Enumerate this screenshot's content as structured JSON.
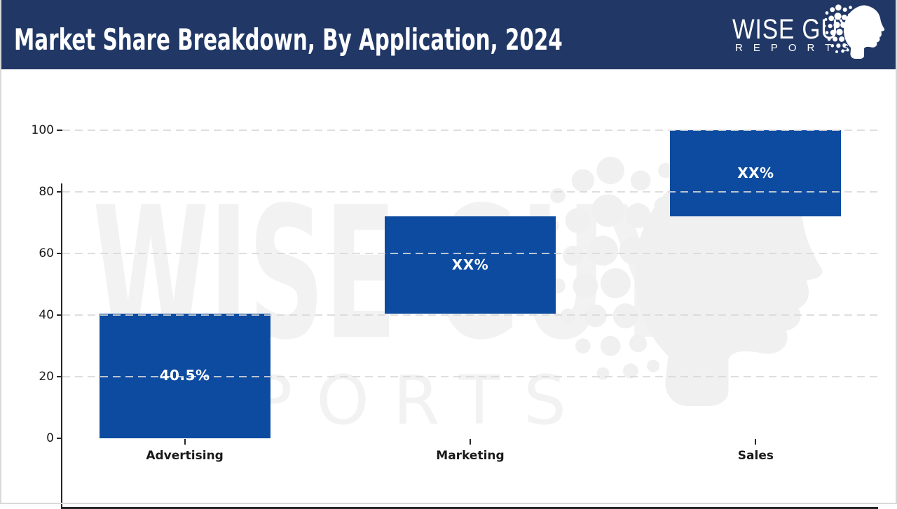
{
  "header": {
    "title": "Market Share Breakdown, By Application, 2024",
    "logo": {
      "line1": "WISE GUY",
      "line2": "REPORTS"
    }
  },
  "watermark": {
    "line1": "WISE GUY",
    "line2": "REPORTS"
  },
  "chart_data": {
    "type": "bar",
    "subtype": "floating-segment-waterfall",
    "title": "Market Share Breakdown, By Application, 2024",
    "categories": [
      "Advertising",
      "Marketing",
      "Sales"
    ],
    "segments": [
      {
        "category": "Advertising",
        "start": 0,
        "end": 40.5,
        "value": 40.5,
        "label": "40.5%"
      },
      {
        "category": "Marketing",
        "start": 40.5,
        "end": 72,
        "value": 31.5,
        "label": "XX%"
      },
      {
        "category": "Sales",
        "start": 72,
        "end": 100,
        "value": 28,
        "label": "XX%"
      }
    ],
    "xlabel": "",
    "ylabel": "",
    "ylim": [
      0,
      100
    ],
    "yticks": [
      0,
      20,
      40,
      60,
      80,
      100
    ],
    "grid": "dashed-horizontal-over-bars",
    "legend": "none",
    "bar_color": "#0c4ba0",
    "label_color": "#ffffff"
  },
  "colors": {
    "header_bg": "#213866",
    "title_color": "#ffffff",
    "bar_color": "#0c4ba0",
    "bar_label_color": "#ffffff",
    "axis_color": "#262626",
    "tick_color": "#1a1a1a",
    "grid_color": "#d8d8d8",
    "watermark_color": "#f2f2f2",
    "frame_border": "#d9d9d9"
  }
}
